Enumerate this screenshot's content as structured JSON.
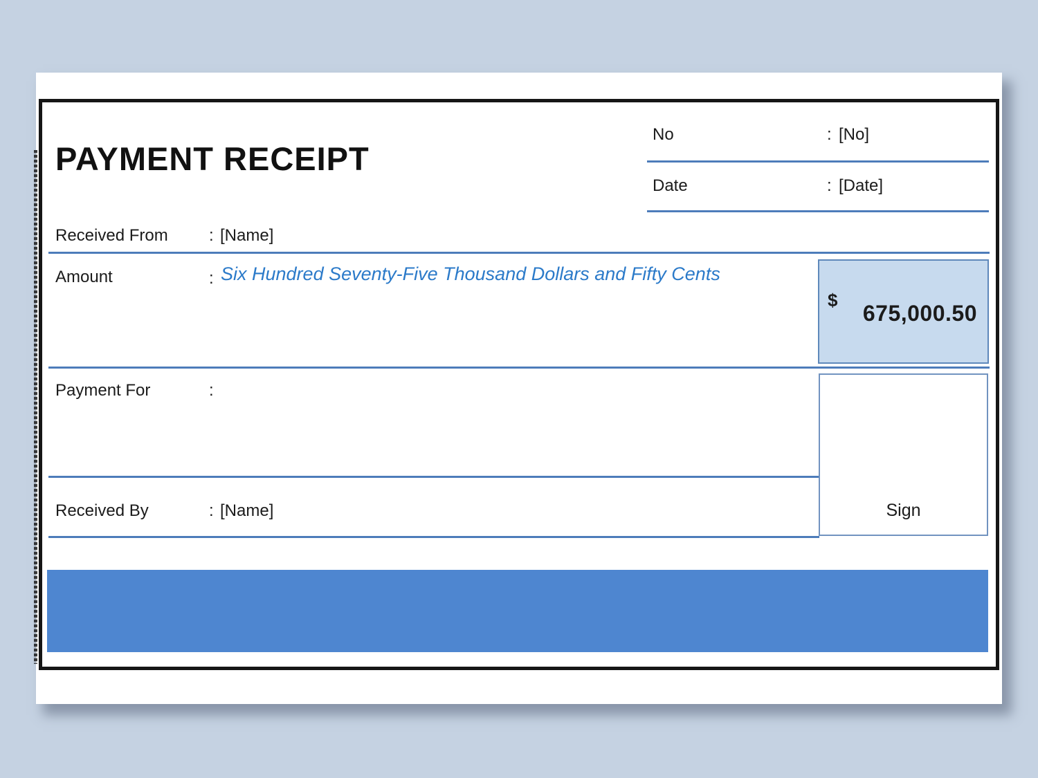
{
  "document": {
    "title": "PAYMENT RECEIPT"
  },
  "punctuation": {
    "colon": ":"
  },
  "header_fields": {
    "no_label": "No",
    "no_value": "[No]",
    "date_label": "Date",
    "date_value": "[Date]"
  },
  "fields": {
    "received_from_label": "Received From",
    "received_from_value": "[Name]",
    "amount_label": "Amount",
    "amount_in_words": "Six Hundred Seventy-Five Thousand Dollars and Fifty Cents",
    "currency_symbol": "$",
    "amount_value": "675,000.50",
    "payment_for_label": "Payment For",
    "payment_for_value": "",
    "received_by_label": "Received By",
    "received_by_value": "[Name]",
    "sign_label": "Sign"
  },
  "colors": {
    "background": "#c5d2e2",
    "accent_bar": "#4e86d0",
    "amount_box_fill": "#c7daee",
    "amount_box_border": "#5e88bb",
    "rule_blue": "#4d7cba",
    "amount_words_text": "#2b7ac9"
  }
}
